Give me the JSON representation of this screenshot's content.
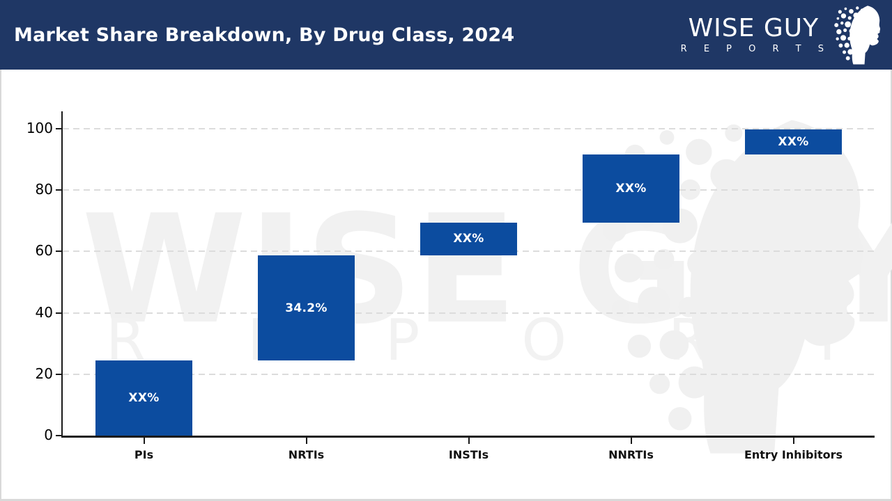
{
  "header": {
    "title": "Market Share Breakdown, By Drug Class, 2024",
    "logo": {
      "line1": "WISE GUY",
      "line2": "R E P O R T S"
    }
  },
  "watermark": {
    "line1": "WISE GUY",
    "line2": "R E P O R T S"
  },
  "chart_data": {
    "type": "bar",
    "subtype": "waterfall-floating-bars",
    "title": "Market Share Breakdown, By Drug Class, 2024",
    "categories": [
      "PIs",
      "NRTIs",
      "INSTIs",
      "NNRTIs",
      "Entry Inhibitors"
    ],
    "bars": [
      {
        "category": "PIs",
        "start": 0,
        "end": 24.5,
        "size": 24.5,
        "label": "XX%"
      },
      {
        "category": "NRTIs",
        "start": 24.5,
        "end": 58.7,
        "size": 34.2,
        "label": "34.2%"
      },
      {
        "category": "INSTIs",
        "start": 58.7,
        "end": 69.5,
        "size": 10.8,
        "label": "XX%"
      },
      {
        "category": "NNRTIs",
        "start": 69.5,
        "end": 91.5,
        "size": 22.0,
        "label": "XX%"
      },
      {
        "category": "Entry Inhibitors",
        "start": 91.5,
        "end": 99.8,
        "size": 8.3,
        "label": "XX%"
      }
    ],
    "xlabel": "",
    "ylabel": "",
    "ylim": [
      0,
      105
    ],
    "yticks": [
      0,
      20,
      40,
      60,
      80,
      100
    ],
    "grid": "horizontal-dashed",
    "legend": "none",
    "bar_color": "#0C4C9F",
    "bar_label_color": "#ffffff",
    "axis_color": "#1a1a1a",
    "gridline_color": "#dcdcdc",
    "header_color": "#1F3765",
    "watermark_color": "#f1f1f1"
  }
}
